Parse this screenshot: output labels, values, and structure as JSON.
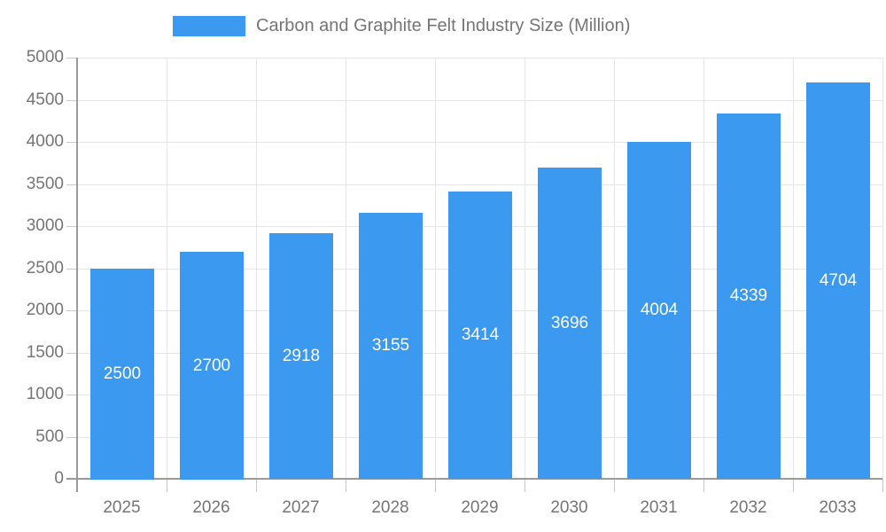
{
  "legend": {
    "label": "Carbon and Graphite Felt Industry Size (Million)",
    "swatch_color": "#3b9af0"
  },
  "chart_data": {
    "type": "bar",
    "title": "Carbon and Graphite Felt Industry Size (Million)",
    "categories": [
      "2025",
      "2026",
      "2027",
      "2028",
      "2029",
      "2030",
      "2031",
      "2032",
      "2033"
    ],
    "values": [
      2500,
      2700,
      2918,
      3155,
      3414,
      3696,
      4004,
      4339,
      4704
    ],
    "xlabel": "",
    "ylabel": "",
    "ylim": [
      0,
      5000
    ],
    "ytick_step": 500,
    "grid": true,
    "legend_position": "top",
    "bar_color": "#3b9af0",
    "value_label_color": "#ffffff",
    "axis_text_color": "#757575",
    "grid_color": "#e6e6e6",
    "axis_line_color": "#9a9a9a"
  }
}
